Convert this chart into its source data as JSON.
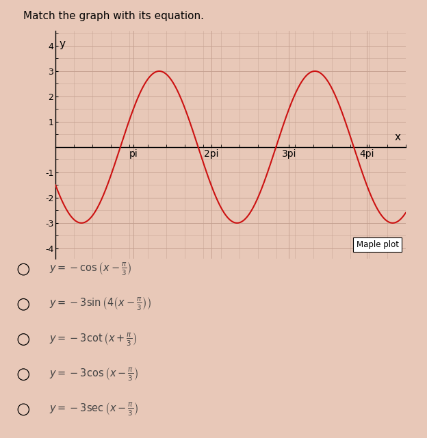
{
  "title": "Match the graph with its equation.",
  "xlim_pi": 4.5,
  "ylim": [
    -4.4,
    4.6
  ],
  "x_tick_labels": [
    "pi",
    "2pi",
    "3pi",
    "4pi"
  ],
  "y_ticks": [
    -4,
    -3,
    -2,
    -1,
    1,
    2,
    3,
    4
  ],
  "curve_color": "#cc1111",
  "background_color": "#e8c8b8",
  "grid_color": "#c4a090",
  "amplitude": -3,
  "phase_shift": 1.0471975511965976,
  "maple_plot_label": "Maple plot",
  "fig_width": 6.24,
  "fig_height": 6.4,
  "dpi": 100,
  "options_math": [
    "y = -\\cos\\left(x - \\frac{\\pi}{3}\\right)",
    "y = -3\\sin\\left(4\\left(x - \\frac{\\pi}{3}\\right)\\right)",
    "y = -3\\cot\\left(x + \\frac{\\pi}{3}\\right)",
    "y = -3\\cos\\left(x - \\frac{\\pi}{3}\\right)",
    "y = -3\\sec\\left(x - \\frac{\\pi}{3}\\right)"
  ]
}
